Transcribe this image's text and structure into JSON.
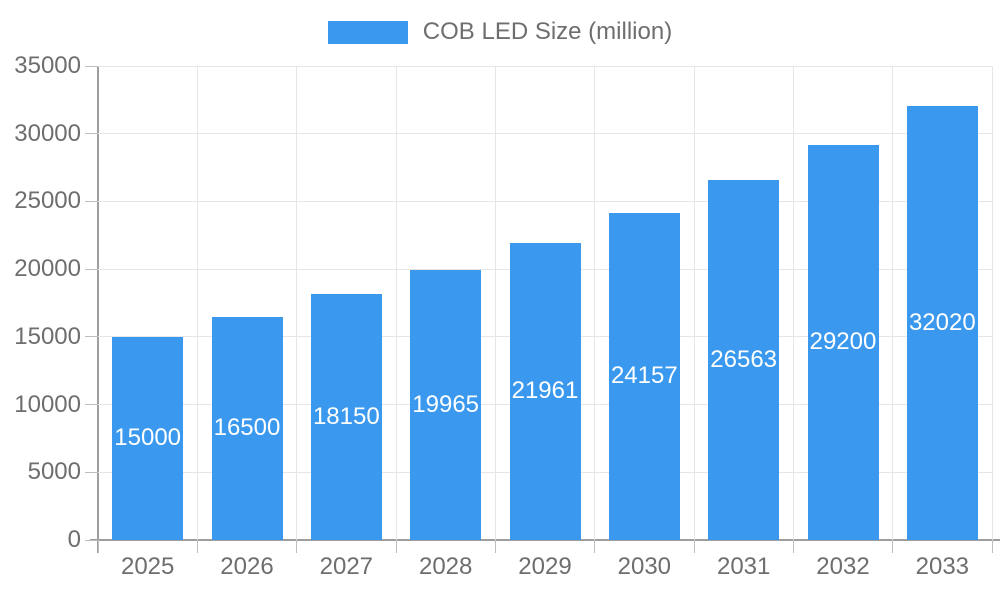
{
  "legend": {
    "items": [
      {
        "label": "COB LED Size (million)",
        "swatch_color": "#3A99EE"
      }
    ]
  },
  "colors": {
    "bar": "#3A99EE",
    "bar_label": "#FFFFFF",
    "grid": "#E6E6E6",
    "axis": "#9E9E9E",
    "tick": "#BDBDBD",
    "text": "#6E6E6E"
  },
  "chart_data": {
    "type": "bar",
    "title": "COB LED Size (million)",
    "categories": [
      "2025",
      "2026",
      "2027",
      "2028",
      "2029",
      "2030",
      "2031",
      "2032",
      "2033"
    ],
    "values": [
      15000,
      16500,
      18150,
      19965,
      21961,
      24157,
      26563,
      29200,
      32020
    ],
    "series": [
      {
        "name": "COB LED Size (million)",
        "values": [
          15000,
          16500,
          18150,
          19965,
          21961,
          24157,
          26563,
          29200,
          32020
        ]
      }
    ],
    "xlabel": "",
    "ylabel": "",
    "ylim": [
      0,
      35000
    ],
    "y_tick_step": 5000,
    "y_ticks": [
      0,
      5000,
      10000,
      15000,
      20000,
      25000,
      30000,
      35000
    ],
    "grid": true,
    "legend_position": "top",
    "bar_label_position": "inside-center"
  }
}
